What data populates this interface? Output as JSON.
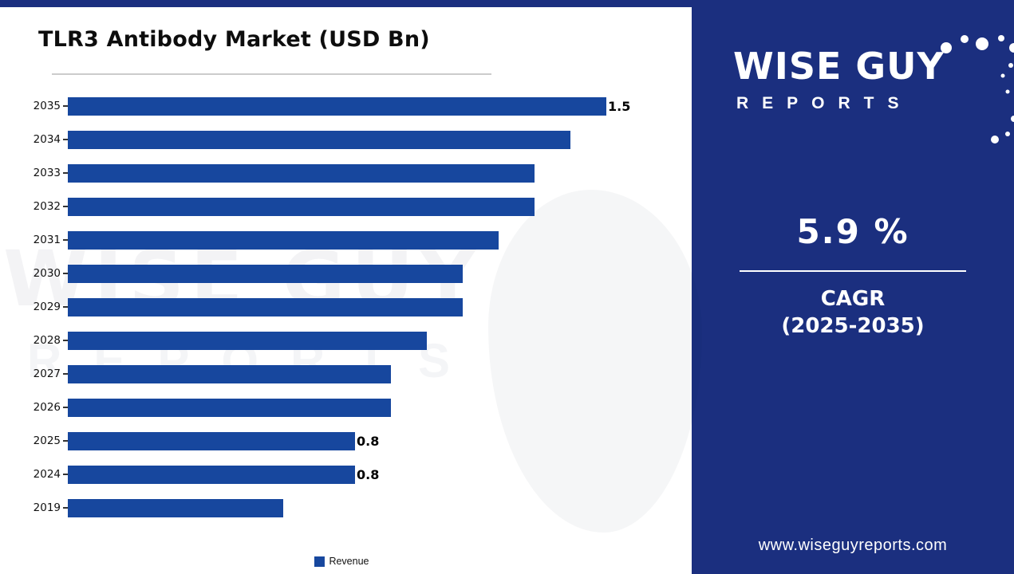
{
  "chart_data": {
    "type": "bar",
    "orientation": "horizontal",
    "title": "TLR3 Antibody Market (USD Bn)",
    "categories": [
      "2035",
      "2034",
      "2033",
      "2032",
      "2031",
      "2030",
      "2029",
      "2028",
      "2027",
      "2026",
      "2025",
      "2024",
      "2019"
    ],
    "values": [
      1.5,
      1.4,
      1.3,
      1.3,
      1.2,
      1.1,
      1.1,
      1.0,
      0.9,
      0.9,
      0.8,
      0.8,
      0.6
    ],
    "value_labels": {
      "2035": "1.5",
      "2025": "0.8",
      "2024": "0.8"
    },
    "xlim": [
      0,
      1.6
    ],
    "xlabel": "",
    "ylabel": "",
    "grid": false,
    "legend": [
      "Revenue"
    ],
    "legend_position": "bottom-center",
    "bar_color": "#17479e"
  },
  "watermark": {
    "line1": "WISE GUY",
    "line2": "REPORTS"
  },
  "sidebar": {
    "background": "#1b2f7f",
    "logo": {
      "line1": "WISE GUY",
      "line2": "REPORTS",
      "icon": "dotted-head-profile"
    },
    "cagr_value": "5.9 %",
    "cagr_label_line1": "CAGR",
    "cagr_label_line2": "(2025-2035)",
    "website": "www.wiseguyreports.com"
  }
}
